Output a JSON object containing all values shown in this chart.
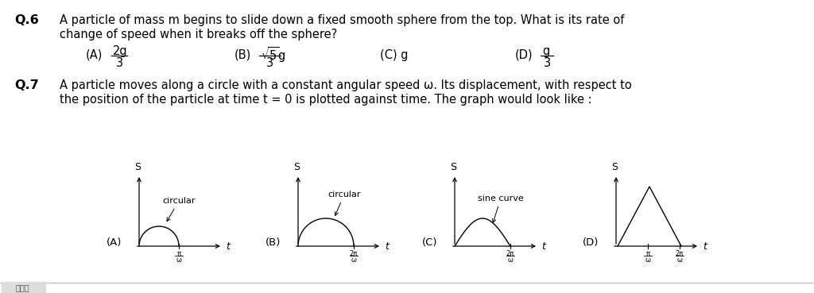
{
  "bg_color": "#ffffff",
  "text_color": "#000000",
  "q6_label": "Q.6",
  "q6_text_line1": "A particle of mass m begins to slide down a fixed smooth sphere from the top. What is its rate of",
  "q6_text_line2": "change of speed when it breaks off the sphere?",
  "q7_label": "Q.7",
  "q7_text_line1": "A particle moves along a circle with a constant angular speed ω. Its displacement, with respect to",
  "q7_text_line2": "the position of the particle at time t = 0 is plotted against time. The graph would look like :",
  "graph_labels": [
    "(A)",
    "(B)",
    "(C)",
    "(D)"
  ],
  "graph_annotations": [
    "circular",
    "circular",
    "sine curve",
    ""
  ],
  "graph_tick_A": "π\nω",
  "graph_tick_B": "2π\nω",
  "graph_tick_C": "2π\nω",
  "graph_tick_D1": "π\nω",
  "graph_tick_D2": "2π\nω",
  "font_size_main": 10.5,
  "font_size_small": 9.5
}
